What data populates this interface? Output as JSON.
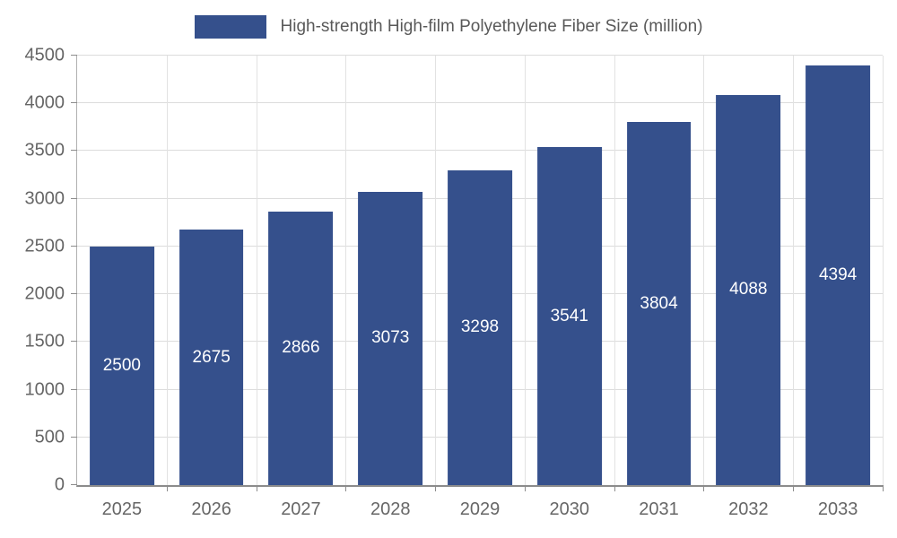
{
  "legend": {
    "label": "High-strength High-film Polyethylene Fiber Size (million)"
  },
  "colors": {
    "bar": "#35508C",
    "value_label": "#ffffff",
    "axis_text": "#666666",
    "grid": "#dcdcdc"
  },
  "chart_data": {
    "type": "bar",
    "title": "High-strength High-film Polyethylene Fiber Size (million)",
    "categories": [
      "2025",
      "2026",
      "2027",
      "2028",
      "2029",
      "2030",
      "2031",
      "2032",
      "2033"
    ],
    "values": [
      2500,
      2675,
      2866,
      3073,
      3298,
      3541,
      3804,
      4088,
      4394
    ],
    "xlabel": "",
    "ylabel": "",
    "ylim": [
      0,
      4500
    ],
    "ytick_step": 500,
    "yticks": [
      0,
      500,
      1000,
      1500,
      2000,
      2500,
      3000,
      3500,
      4000,
      4500
    ],
    "grid": true,
    "legend_position": "top",
    "bar_width_fraction": 0.72
  }
}
